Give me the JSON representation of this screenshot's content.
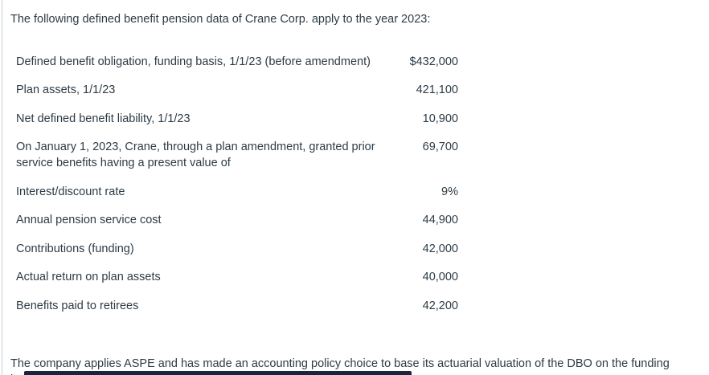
{
  "question": {
    "title": "The following defined benefit pension data of Crane Corp. apply to the year 2023:",
    "footer": "The company applies ASPE and has made an accounting policy choice to base its actuarial valuation of the DBO on the funding basis."
  },
  "table": {
    "rows": [
      {
        "label": "Defined benefit obligation, funding basis, 1/1/23 (before amendment)",
        "value": "$432,000"
      },
      {
        "label": "Plan assets, 1/1/23",
        "value": "421,100"
      },
      {
        "label": "Net defined benefit liability, 1/1/23",
        "value": "10,900"
      },
      {
        "label": "On January 1, 2023, Crane, through a plan amendment, granted prior service benefits having a present value of",
        "value": "69,700"
      },
      {
        "label": "Interest/discount rate",
        "value": "9%"
      },
      {
        "label": "Annual pension service cost",
        "value": "44,900"
      },
      {
        "label": "Contributions (funding)",
        "value": "42,000"
      },
      {
        "label": "Actual return on plan assets",
        "value": "40,000"
      },
      {
        "label": "Benefits paid to retirees",
        "value": "42,200"
      }
    ]
  },
  "colors": {
    "text": "#2D3B45",
    "left_border": "#C7CDD1",
    "bottom_bar": "#1B2340",
    "background": "#FFFFFF"
  }
}
